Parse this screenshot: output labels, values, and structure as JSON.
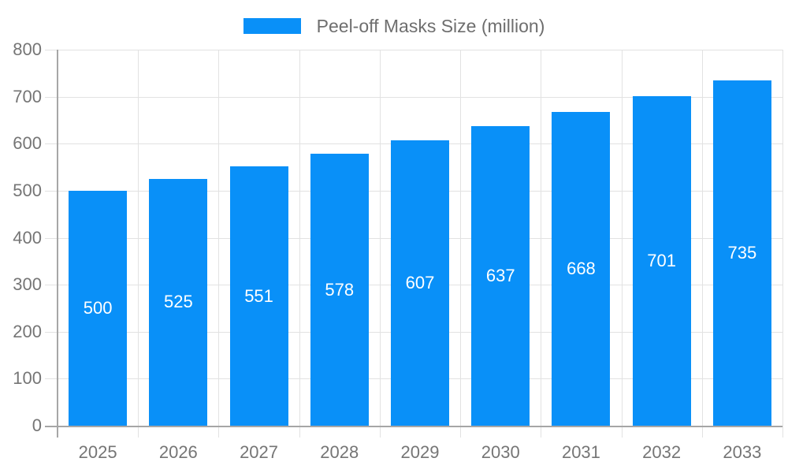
{
  "legend": {
    "label": "Peel-off Masks Size (million)"
  },
  "chart_data": {
    "type": "bar",
    "title": "Peel-off Masks Size (million)",
    "categories": [
      "2025",
      "2026",
      "2027",
      "2028",
      "2029",
      "2030",
      "2031",
      "2032",
      "2033"
    ],
    "values": [
      500,
      525,
      551,
      578,
      607,
      637,
      668,
      701,
      735
    ],
    "value_labels": [
      "500",
      "525",
      "551",
      "578",
      "607",
      "637",
      "668",
      "701",
      "735"
    ],
    "value_label_position": "inside-center",
    "xlabel": "",
    "ylabel": "",
    "ylim": [
      0,
      800
    ],
    "ytick_step": 100,
    "ytick_labels": [
      "0",
      "100",
      "200",
      "300",
      "400",
      "500",
      "600",
      "700",
      "800"
    ],
    "grid": true,
    "legend_position": "top",
    "colors": {
      "bar": "#0990f8",
      "axis_line": "#a6a6a6",
      "gridline": "#e2e2e2",
      "tick_text": "#757575",
      "legend_text": "#6e6e6e",
      "value_label_text": "#ffffff",
      "background": "#ffffff"
    }
  }
}
